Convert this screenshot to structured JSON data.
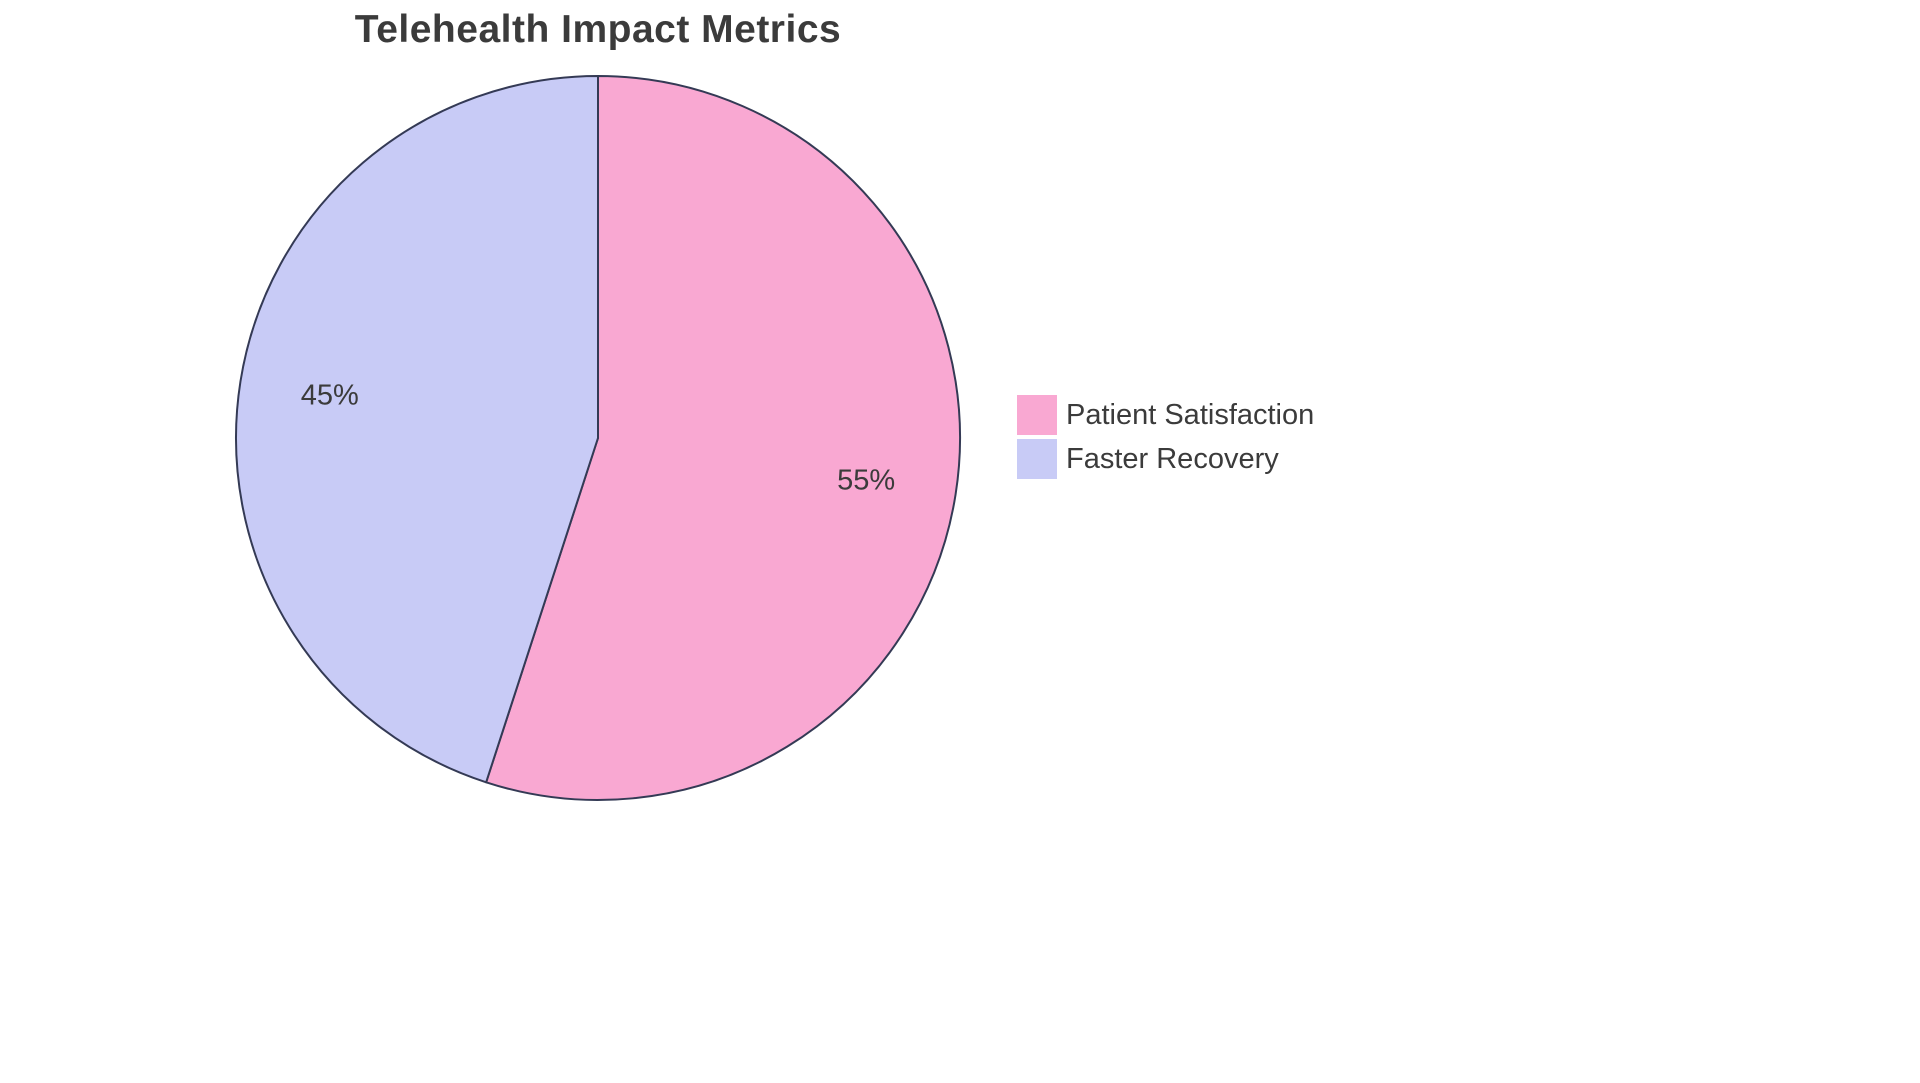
{
  "chart_data": {
    "type": "pie",
    "title": "Telehealth Impact Metrics",
    "legend_position": "right",
    "direction": "clockwise",
    "start_angle_deg": 0,
    "stroke_color": "#343A55",
    "background_color": "#FFFFFF",
    "slices": [
      {
        "label": "Patient Satisfaction",
        "value": 55,
        "display": "55%",
        "color": "#F9A8D2"
      },
      {
        "label": "Faster Recovery",
        "value": 45,
        "display": "45%",
        "color": "#C8CBF6"
      }
    ]
  }
}
